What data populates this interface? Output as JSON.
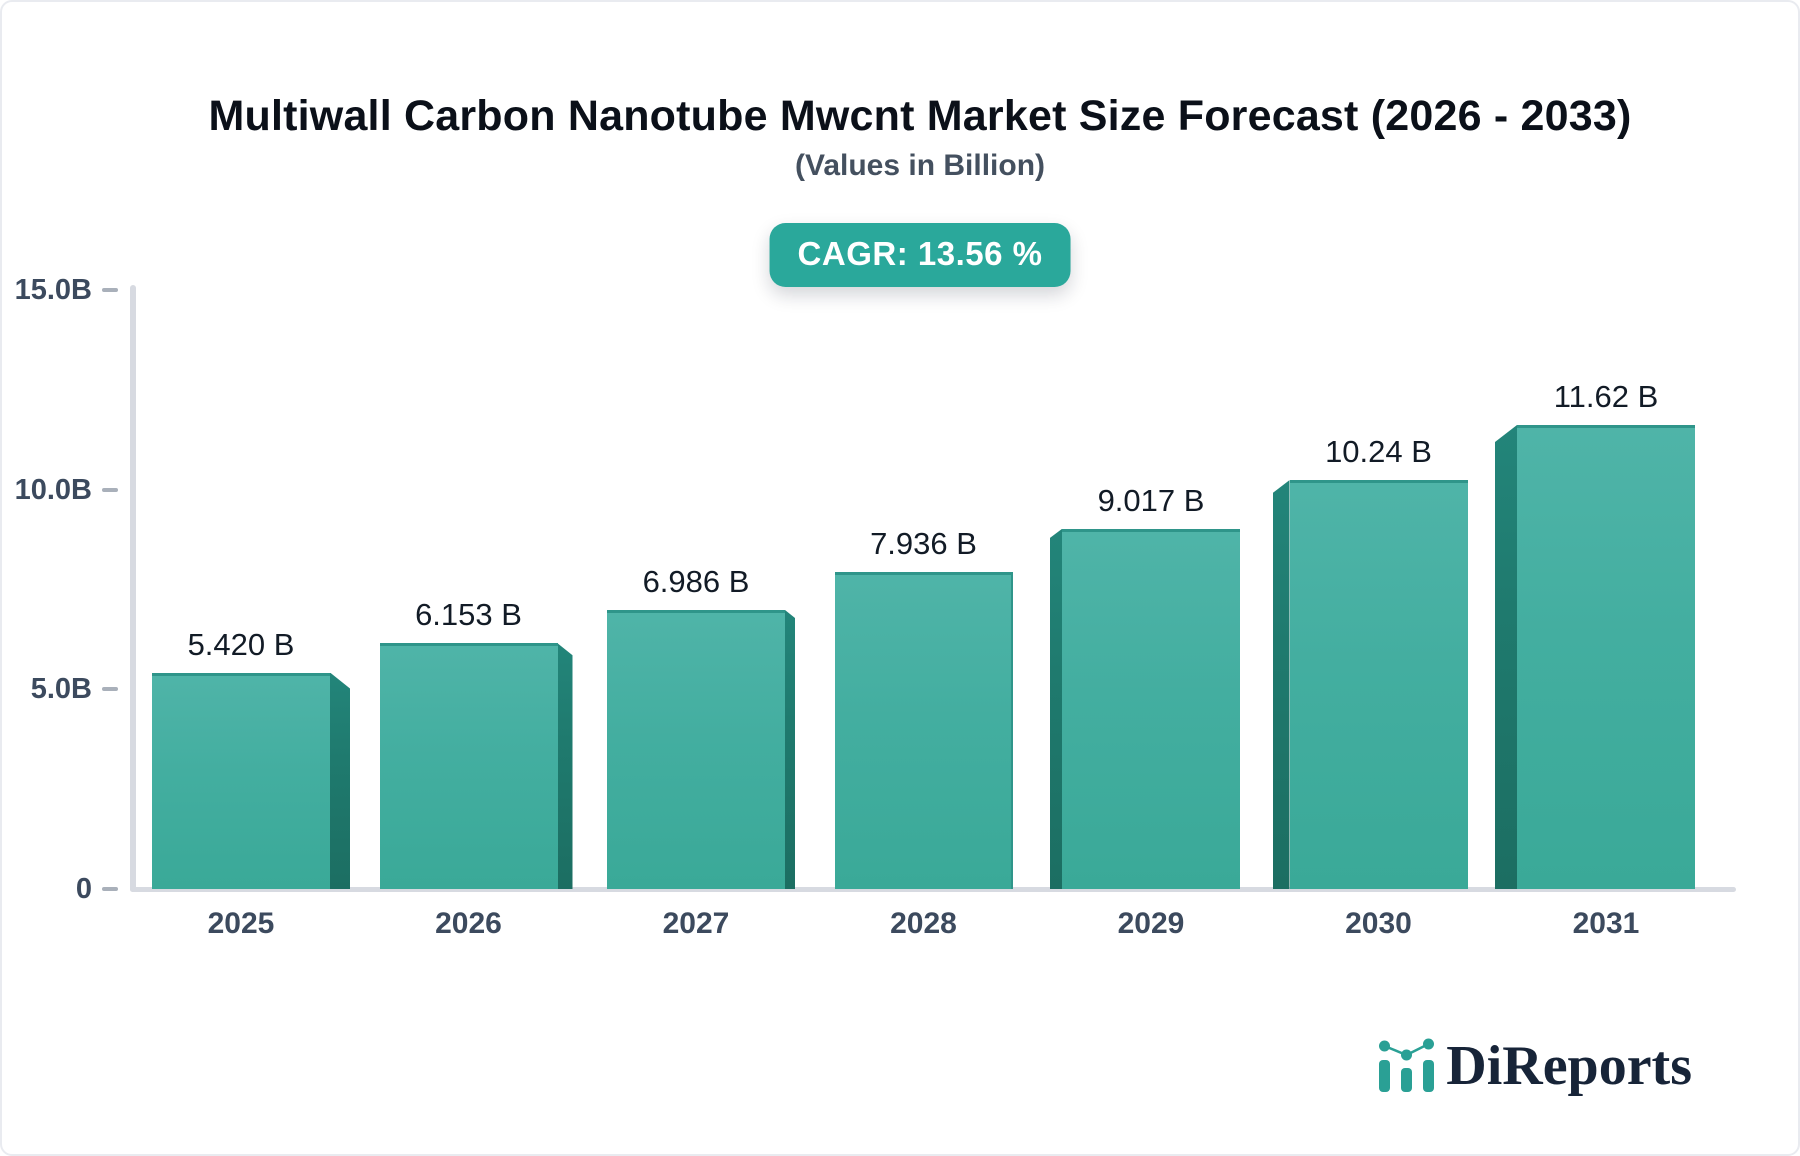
{
  "chart": {
    "title": "Multiwall Carbon Nanotube Mwcnt Market Size Forecast (2026 - 2033)",
    "subtitle": "(Values in Billion)",
    "cagr_label": "CAGR: 13.56 %"
  },
  "chart_data": {
    "type": "bar",
    "title": "Multiwall Carbon Nanotube Mwcnt Market Size Forecast (2026 - 2033)",
    "subtitle": "(Values in Billion)",
    "cagr_percent": 13.56,
    "categories": [
      "2025",
      "2026",
      "2027",
      "2028",
      "2029",
      "2030",
      "2031"
    ],
    "values": [
      5.42,
      6.153,
      6.986,
      7.936,
      9.017,
      10.24,
      11.62
    ],
    "value_labels": [
      "5.420 B",
      "6.153 B",
      "6.986 B",
      "7.936 B",
      "9.017 B",
      "10.24 B",
      "11.62 B"
    ],
    "unit": "Billion",
    "ylim": [
      0,
      15
    ],
    "yticks": [
      {
        "value": 15,
        "label": "15.0B"
      },
      {
        "value": 10,
        "label": "10.0B"
      },
      {
        "value": 5,
        "label": "5.0B"
      },
      {
        "value": 0,
        "label": "0"
      }
    ],
    "grid": false,
    "legend": false,
    "bar_color_top": "#4fb4a8",
    "bar_color_bottom": "#3aa998",
    "bar_side_color": "#1f7a6e",
    "bar_edge_color": "#2f958a",
    "axis_color": "#d7dae1",
    "tick_label_color": "#3c4a5e",
    "value_label_color": "#121b26"
  },
  "badge": {
    "background": "#2aa89b",
    "text_color": "#ffffff"
  },
  "logo": {
    "text": "DiReports",
    "icon": "bar-line-chart-icon",
    "text_color": "#172438",
    "accent_color": "#2aa095"
  }
}
